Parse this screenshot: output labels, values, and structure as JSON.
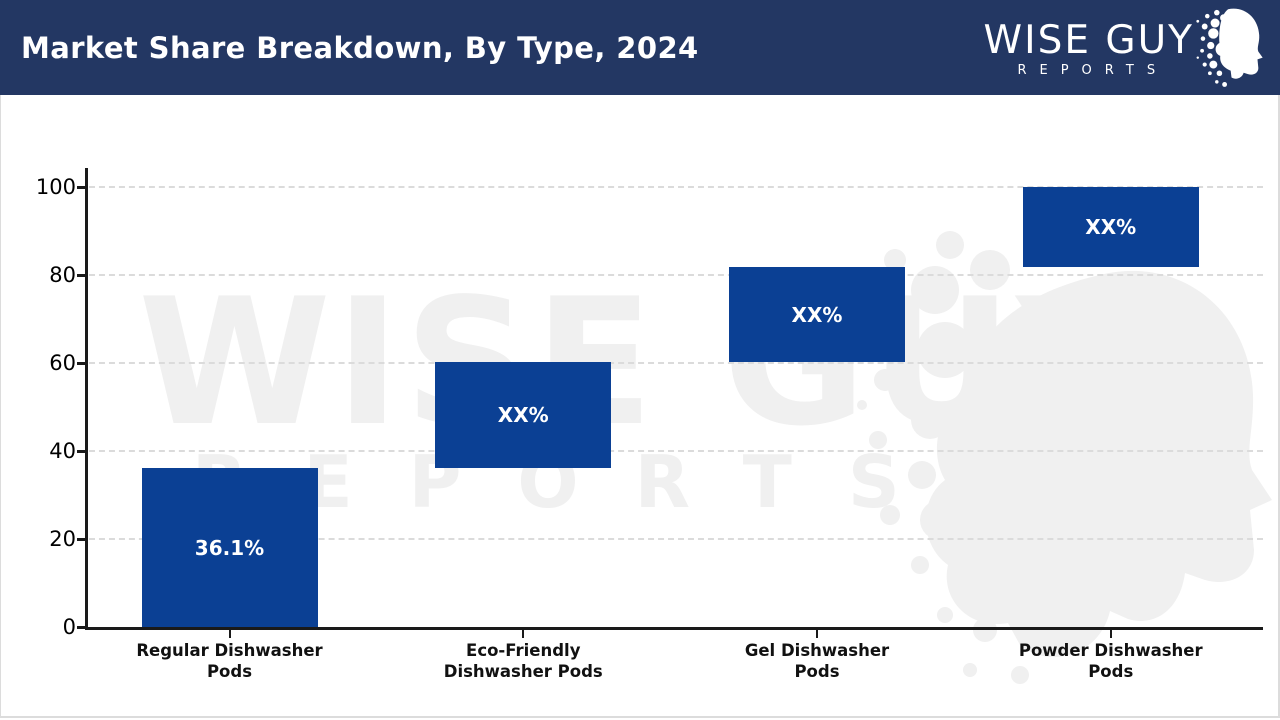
{
  "header": {
    "title": "Market Share Breakdown, By Type, 2024",
    "logo_line1": "WISE GUY",
    "logo_line2": "REPORTS"
  },
  "watermark": {
    "line1": "WISE GUY",
    "line2": "REPORTS"
  },
  "chart_data": {
    "type": "bar",
    "subtype": "waterfall",
    "title": "Market Share Breakdown, By Type, 2024",
    "categories": [
      "Regular Dishwasher\nPods",
      "Eco-Friendly\nDishwasher Pods",
      "Gel Dishwasher\nPods",
      "Powder Dishwasher\nPods"
    ],
    "segments": [
      {
        "category": "Regular Dishwasher Pods",
        "start": 0,
        "end": 36.1,
        "label": "36.1%"
      },
      {
        "category": "Eco-Friendly Dishwasher Pods",
        "start": 36.1,
        "end": 60.2,
        "label": "XX%"
      },
      {
        "category": "Gel Dishwasher Pods",
        "start": 60.2,
        "end": 81.8,
        "label": "XX%"
      },
      {
        "category": "Powder Dishwasher Pods",
        "start": 81.8,
        "end": 100,
        "label": "XX%"
      }
    ],
    "ylim": [
      0,
      100
    ],
    "yticks": [
      0,
      20,
      40,
      60,
      80,
      100
    ],
    "grid": "horizontal-dashed",
    "legend": "none",
    "bar_color": "#0b4094",
    "bar_label_color": "#ffffff",
    "grid_color": "#dbdbdb",
    "axis_color": "#1a1a1a"
  },
  "colors": {
    "header_bg": "#233763",
    "page_bg": "#ffffff",
    "title_color": "#ffffff",
    "watermark_color": "#f0f0f0"
  }
}
